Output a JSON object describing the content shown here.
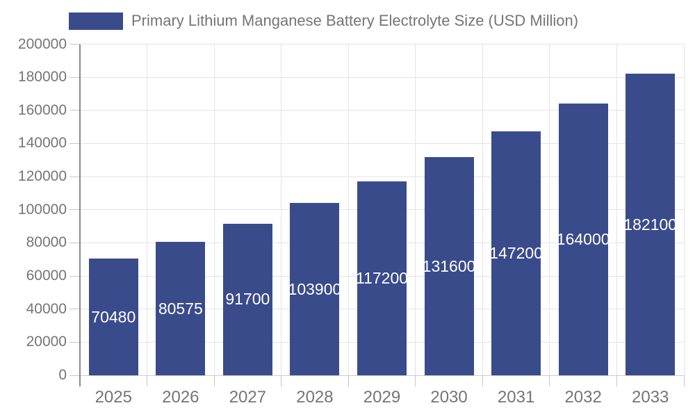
{
  "legend": {
    "label": "Primary Lithium Manganese Battery Electrolyte Size (USD Million)"
  },
  "chart_data": {
    "type": "bar",
    "title": "Primary Lithium Manganese Battery Electrolyte Size (USD Million)",
    "categories": [
      "2025",
      "2026",
      "2027",
      "2028",
      "2029",
      "2030",
      "2031",
      "2032",
      "2033"
    ],
    "series": [
      {
        "name": "Primary Lithium Manganese Battery Electrolyte Size (USD Million)",
        "values": [
          70480,
          80575,
          91700,
          103900,
          117200,
          131600,
          147200,
          164000,
          182100
        ]
      }
    ],
    "value_labels": [
      "70480",
      "80575",
      "91700",
      "103900",
      "117200",
      "131600",
      "147200",
      "164000",
      "182100"
    ],
    "xlabel": "",
    "ylabel": "",
    "ylim": [
      0,
      200000
    ],
    "ytick_interval": 20000,
    "ytick_labels": [
      "0",
      "20000",
      "40000",
      "60000",
      "80000",
      "100000",
      "120000",
      "140000",
      "160000",
      "180000",
      "200000"
    ],
    "grid": true,
    "legend_position": "top-left"
  },
  "colors": {
    "bar": "#3a4b8c",
    "bar_label": "#ffffff",
    "axis_text": "#757575",
    "grid_line": "#e4e4e4",
    "axis_line": "#8a8a8a",
    "baseline": "#cccccc",
    "tick": "#c6c6c6",
    "background": "#ffffff"
  }
}
